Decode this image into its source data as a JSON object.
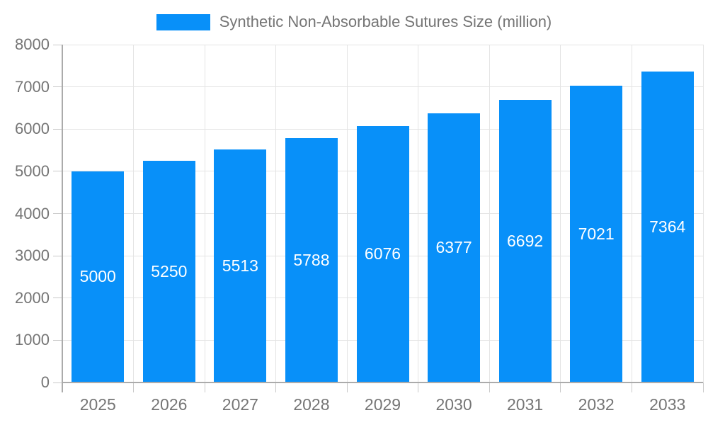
{
  "chart_data": {
    "type": "bar",
    "title": "Synthetic Non-Absorbable Sutures Size (million)",
    "categories": [
      "2025",
      "2026",
      "2027",
      "2028",
      "2029",
      "2030",
      "2031",
      "2032",
      "2033"
    ],
    "values": [
      5000,
      5250,
      5513,
      5788,
      6076,
      6377,
      6692,
      7021,
      7364
    ],
    "xlabel": "",
    "ylabel": "",
    "ylim": [
      0,
      8000
    ],
    "ytick_step": 1000,
    "yticks": [
      0,
      1000,
      2000,
      3000,
      4000,
      5000,
      6000,
      7000,
      8000
    ],
    "grid": true,
    "legend_position": "top",
    "bar_labels_inside": true,
    "colors": {
      "bar": "#0890F9",
      "grid": "#E4E4E4",
      "axis": "#ABABAB",
      "tick": "#C9C9C9",
      "axis_text": "#757575",
      "legend_text": "#757575",
      "bar_label_text": "#FFFFFF",
      "background": "#FFFFFF"
    }
  }
}
